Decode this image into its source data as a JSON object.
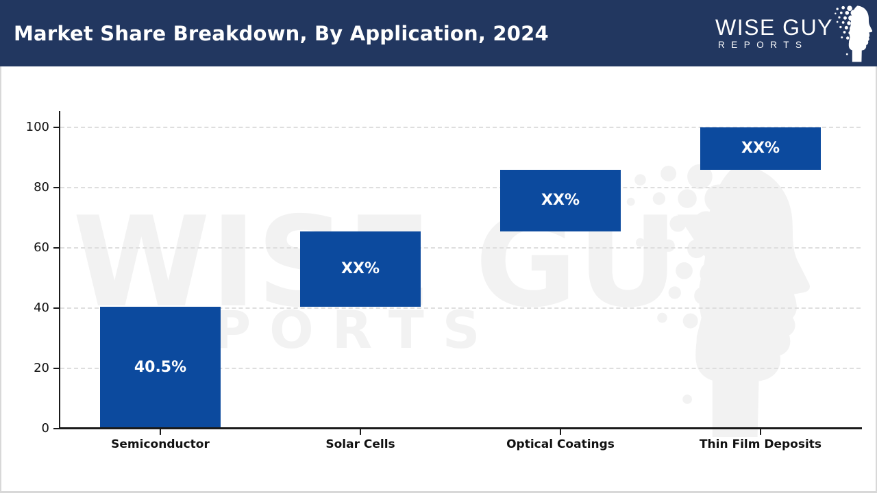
{
  "header": {
    "title": "Market Share Breakdown, By Application, 2024",
    "logo": {
      "line1": "WISE GUY",
      "line2": "REPORTS"
    }
  },
  "watermark": {
    "line1": "WISE GUY",
    "line2": "REPORTS"
  },
  "chart_data": {
    "type": "bar",
    "subtype": "waterfall",
    "title": "Market Share Breakdown, By Application, 2024",
    "categories": [
      "Semiconductor",
      "Solar Cells",
      "Optical Coatings",
      "Thin Film Deposits"
    ],
    "bars": [
      {
        "category": "Semiconductor",
        "start": 0,
        "end": 40.5,
        "label": "40.5%"
      },
      {
        "category": "Solar Cells",
        "start": 40.5,
        "end": 65.5,
        "label": "XX%"
      },
      {
        "category": "Optical Coatings",
        "start": 65.5,
        "end": 86,
        "label": "XX%"
      },
      {
        "category": "Thin Film Deposits",
        "start": 86,
        "end": 100,
        "label": "XX%"
      }
    ],
    "ylim": [
      0,
      100
    ],
    "yticks": [
      0,
      20,
      40,
      60,
      80,
      100
    ],
    "xlabel": "",
    "ylabel": "",
    "grid": "horizontal-dashed",
    "legend": null,
    "bar_color": "#0c4a9e",
    "bar_label_color": "#ffffff"
  },
  "colors": {
    "header_bg": "#223760",
    "title_text": "#ffffff",
    "bar": "#0c4a9e",
    "axis": "#1a1a1a",
    "grid": "#dedede",
    "watermark": "#f2f2f2",
    "card_border": "#d8d8d8"
  }
}
